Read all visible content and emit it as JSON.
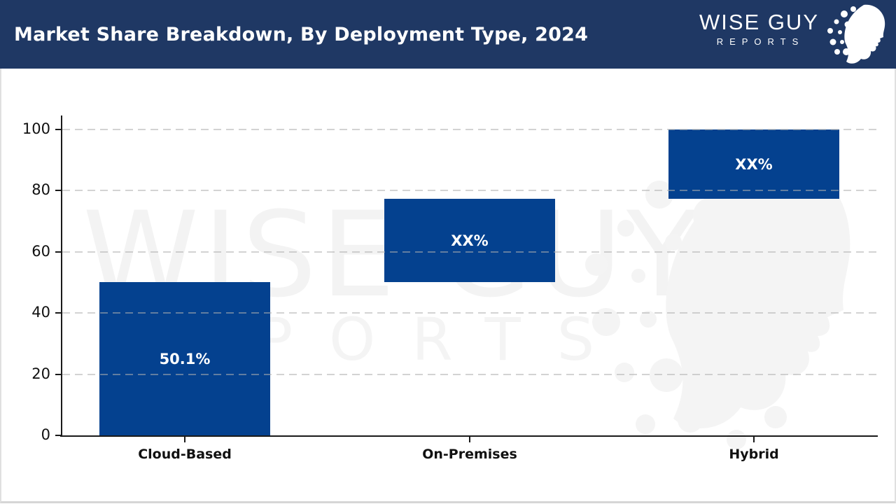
{
  "header": {
    "title": "Market Share Breakdown, By Deployment Type, 2024",
    "logo": {
      "line1": "WISE GUY",
      "line2": "REPORTS"
    }
  },
  "watermark": {
    "line1": "WISE GUY",
    "line2": "REPORTS"
  },
  "colors": {
    "header_bg": "#1f3864",
    "bar": "#04418f",
    "axis": "#1a1a1a",
    "gridline": "#d9d9d9",
    "bar_label_text": "#ffffff",
    "title_text": "#ffffff"
  },
  "chart_data": {
    "type": "bar",
    "subtype": "waterfall",
    "title": "Market Share Breakdown, By Deployment Type, 2024",
    "categories": [
      "Cloud-Based",
      "On-Premises",
      "Hybrid"
    ],
    "segments": [
      {
        "category": "Cloud-Based",
        "start": 0,
        "end": 50.1,
        "label": "50.1%"
      },
      {
        "category": "On-Premises",
        "start": 50.1,
        "end": 77.3,
        "label": "XX%"
      },
      {
        "category": "Hybrid",
        "start": 77.3,
        "end": 100,
        "label": "XX%"
      }
    ],
    "display_labels": [
      "50.1%",
      "XX%",
      "XX%"
    ],
    "yticks": [
      0,
      20,
      40,
      60,
      80,
      100
    ],
    "ylim": [
      0,
      105
    ],
    "xlabel": "",
    "ylabel": "",
    "grid": "horizontal-dashed",
    "legend": "none",
    "bar_color": "#04418f"
  }
}
